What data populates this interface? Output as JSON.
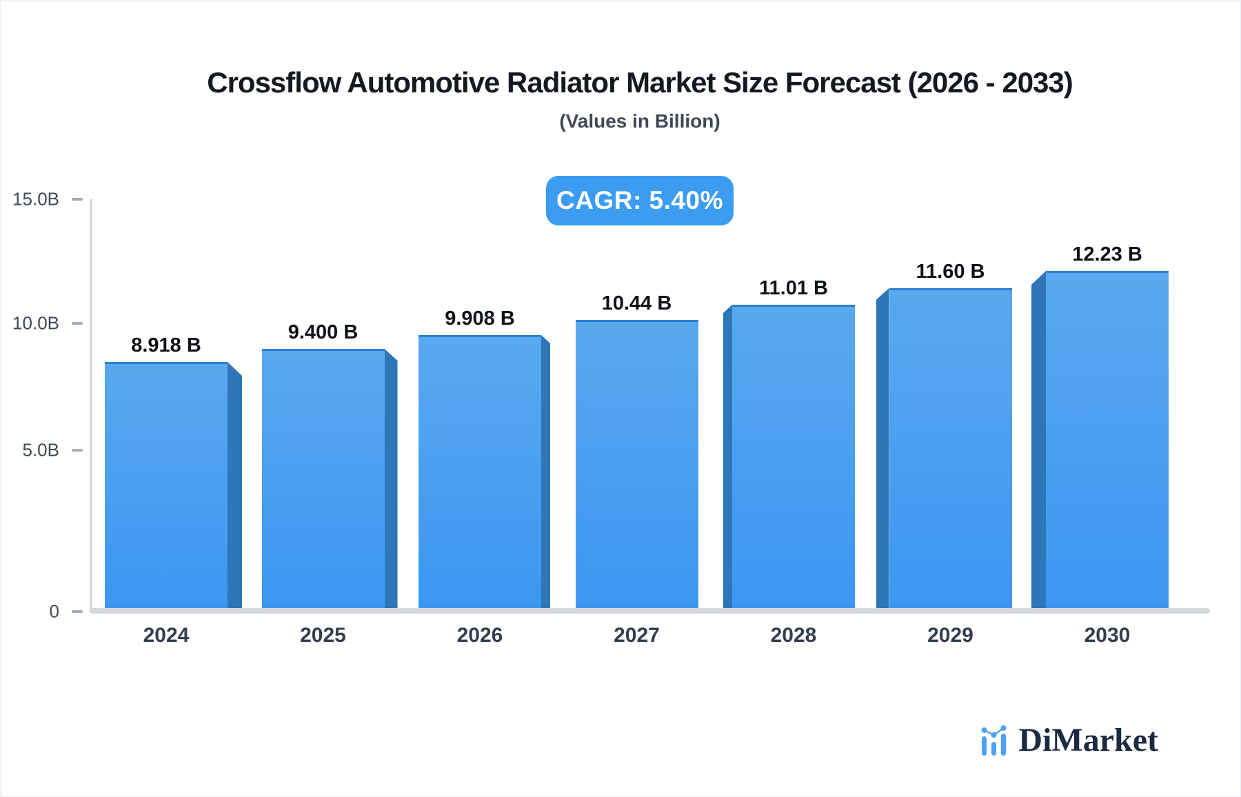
{
  "title": "Crossflow Automotive Radiator Market Size Forecast (2026 - 2033)",
  "subtitle": "(Values in Billion)",
  "cagr_badge": "CAGR: 5.40%",
  "chart_data": {
    "type": "bar",
    "title": "Crossflow Automotive Radiator Market Size Forecast (2026 - 2033)",
    "subtitle": "(Values in Billion)",
    "xlabel": "",
    "ylabel": "",
    "unit": "Billion",
    "categories": [
      "2024",
      "2025",
      "2026",
      "2027",
      "2028",
      "2029",
      "2030"
    ],
    "values": [
      8.918,
      9.4,
      9.908,
      10.44,
      11.01,
      11.6,
      12.23
    ],
    "value_labels": [
      "8.918 B",
      "9.400 B",
      "9.908 B",
      "10.44 B",
      "11.01 B",
      "11.60 B",
      "12.23 B"
    ],
    "ylim": [
      0,
      15
    ],
    "y_ticks": [
      {
        "label": "15.0B",
        "value": 15
      },
      {
        "label": "10.0B",
        "value": 10
      },
      {
        "label": "5.0B",
        "value": 5
      },
      {
        "label": "0",
        "value": 0
      }
    ],
    "grid": false,
    "legend": false,
    "annotations": [
      "CAGR: 5.40%"
    ]
  },
  "branding": {
    "name": "DiMarket",
    "icon": "bar-line-chart-icon"
  },
  "colors": {
    "accent": "#3B9CF2",
    "bar_top": "#59A8EE",
    "bar_bottom": "#3B97F2",
    "bar_edge": "#2B80D2",
    "bar_side": "#2E76B8",
    "axis_gray": "#D5D8DC",
    "tick_gray": "#A7ADB6",
    "label_dark": "#3E4755",
    "text_dark": "#14181F",
    "brand_navy": "#1C2A42",
    "brand_blue": "#4BA3F7"
  }
}
